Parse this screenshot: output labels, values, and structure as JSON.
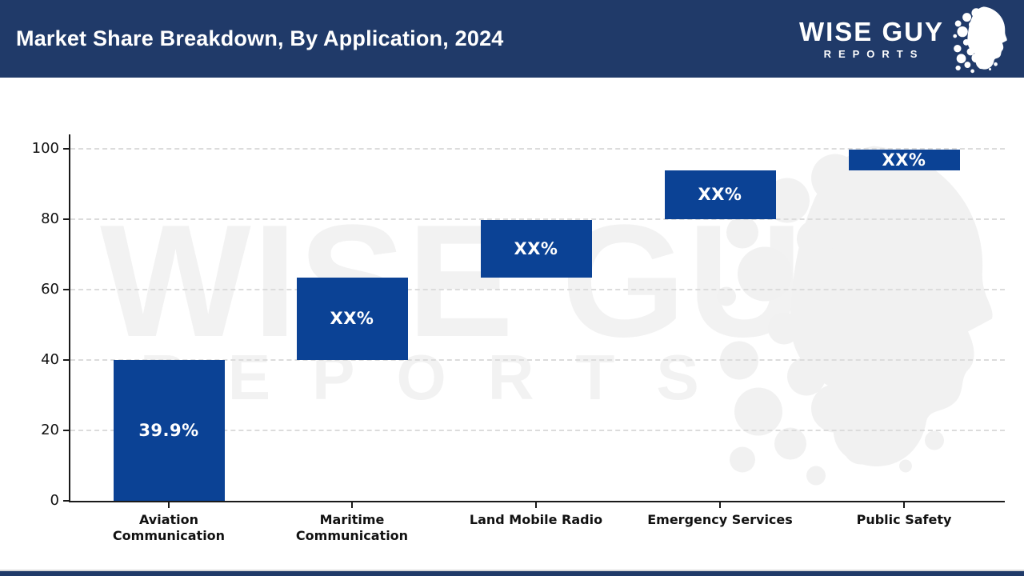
{
  "header": {
    "title": "Market Share Breakdown, By Application, 2024",
    "bg_color": "#203a69",
    "logo": {
      "line1": "WISE GUY",
      "line2": "REPORTS"
    }
  },
  "watermark": {
    "line1": "WISE GUY",
    "line2": "REPORTS"
  },
  "chart_data": {
    "type": "bar",
    "subtype": "floating-waterfall",
    "title": "Market Share Breakdown, By Application, 2024",
    "categories": [
      "Aviation Communication",
      "Maritime Communication",
      "Land Mobile Radio",
      "Emergency Services",
      "Public Safety"
    ],
    "category_label_lines": [
      [
        "Aviation",
        "Communication"
      ],
      [
        "Maritime",
        "Communication"
      ],
      [
        "Land Mobile Radio"
      ],
      [
        "Emergency Services"
      ],
      [
        "Public Safety"
      ]
    ],
    "segments": [
      {
        "category": "Aviation Communication",
        "start": 0,
        "end": 39.9,
        "label": "39.9%"
      },
      {
        "category": "Maritime Communication",
        "start": 40.1,
        "end": 63.5,
        "label": "XX%"
      },
      {
        "category": "Land Mobile Radio",
        "start": 63.4,
        "end": 79.8,
        "label": "XX%"
      },
      {
        "category": "Emergency Services",
        "start": 80.1,
        "end": 93.9,
        "label": "XX%"
      },
      {
        "category": "Public Safety",
        "start": 93.9,
        "end": 99.7,
        "label": "XX%"
      }
    ],
    "xlabel": "",
    "ylabel": "",
    "ylim": [
      0,
      100
    ],
    "yticks": [
      0,
      20,
      40,
      60,
      80,
      100
    ],
    "grid": "horizontal-dashed",
    "legend": "none",
    "bar_color": "#0b4295",
    "bar_label_color": "#ffffff"
  },
  "footer": {
    "bar_color": "#203a69"
  }
}
